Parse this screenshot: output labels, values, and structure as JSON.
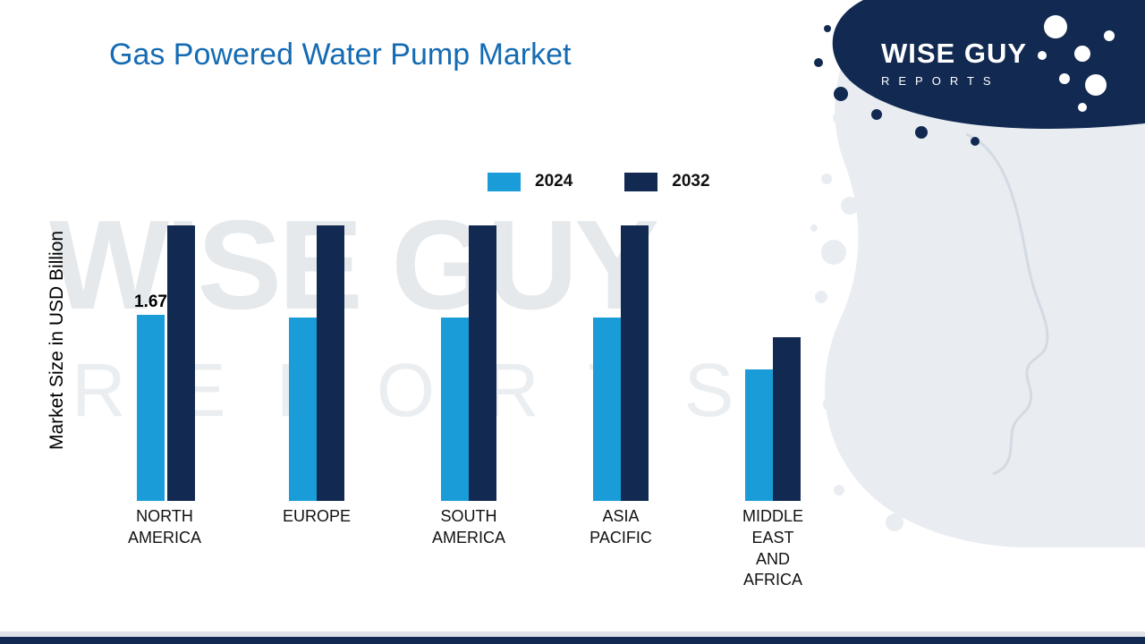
{
  "page": {
    "background": "#ffffff"
  },
  "title": "Gas Powered Water Pump Market",
  "logo": {
    "brand": "WISE GUY",
    "sub": "REPORTS"
  },
  "watermark": {
    "line1": "WISE GUY",
    "line2": "REPORTS"
  },
  "colors": {
    "title_blue": "#156bb3",
    "series_2024": "#1a9cd8",
    "series_2032": "#122a52",
    "deco_gray": "#e9edf2",
    "deco_navy": "#122a52"
  },
  "chart_data": {
    "type": "bar",
    "title": "Gas Powered Water Pump Market",
    "xlabel": "",
    "ylabel": "Market Size in USD Billion",
    "ylim": [
      0,
      2.8
    ],
    "grid": false,
    "legend_position": "top-center",
    "categories": [
      "NORTH AMERICA",
      "EUROPE",
      "SOUTH AMERICA",
      "ASIA PACIFIC",
      "MIDDLE EAST AND AFRICA"
    ],
    "category_labels": [
      "NORTH\nAMERICA",
      "EUROPE",
      "SOUTH\nAMERICA",
      "ASIA\nPACIFIC",
      "MIDDLE\nEAST\nAND\nAFRICA"
    ],
    "series": [
      {
        "name": "2024",
        "color": "#1a9cd8",
        "values": [
          1.67,
          1.65,
          1.65,
          1.65,
          1.18
        ],
        "point_labels": [
          "1.67",
          "",
          "",
          "",
          ""
        ]
      },
      {
        "name": "2032",
        "color": "#122a52",
        "values": [
          2.47,
          2.47,
          2.47,
          2.47,
          1.47
        ],
        "point_labels": [
          "",
          "",
          "",
          "",
          ""
        ]
      }
    ]
  }
}
